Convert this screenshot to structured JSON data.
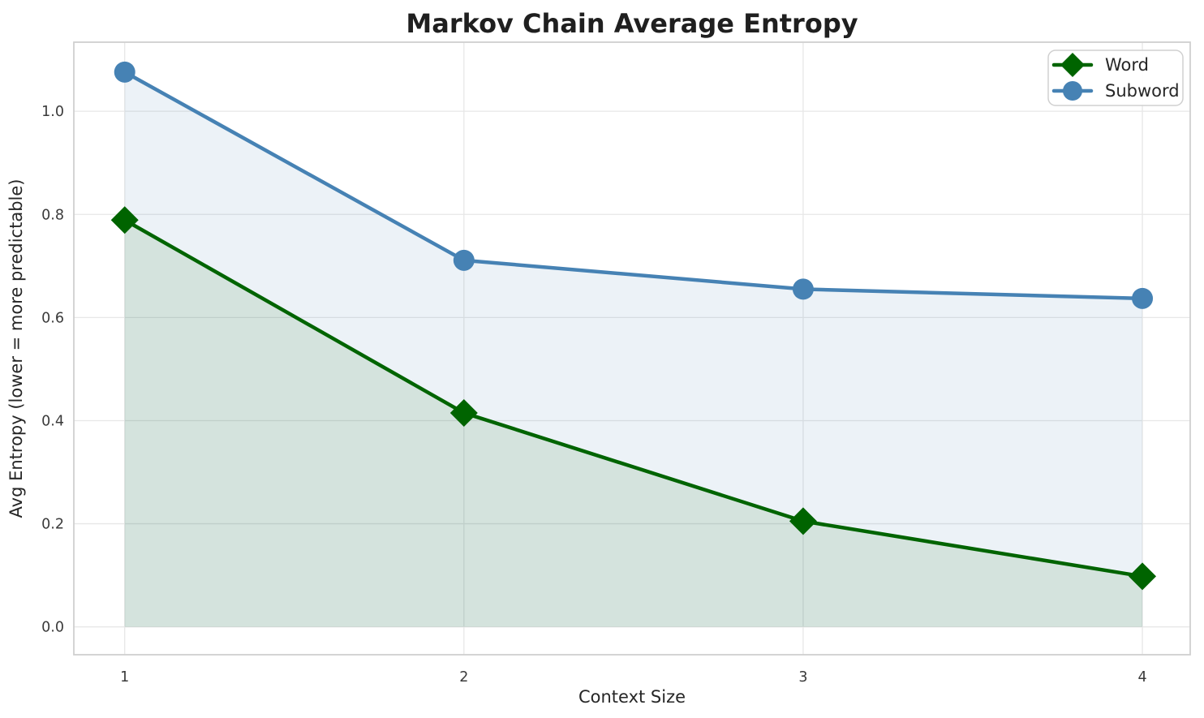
{
  "chart_data": {
    "type": "line",
    "title": "Markov Chain Average Entropy",
    "xlabel": "Context Size",
    "ylabel": "Avg Entropy (lower = more predictable)",
    "x": [
      1,
      2,
      3,
      4
    ],
    "series": [
      {
        "name": "Word",
        "values": [
          0.789,
          0.415,
          0.205,
          0.098
        ],
        "color": "#006400",
        "marker": "diamond",
        "area_fill": true,
        "fill_opacity": 0.1
      },
      {
        "name": "Subword",
        "values": [
          1.076,
          0.711,
          0.655,
          0.637
        ],
        "color": "#4682b4",
        "marker": "circle",
        "area_fill": true,
        "fill_opacity": 0.1
      }
    ],
    "xlim": [
      0.85,
      4.141
    ],
    "ylim": [
      -0.054,
      1.134
    ],
    "xticks": [
      1,
      2,
      3,
      4
    ],
    "xtick_labels": [
      "1",
      "2",
      "3",
      "4"
    ],
    "yticks": [
      0.0,
      0.2,
      0.4,
      0.6,
      0.8,
      1.0
    ],
    "ytick_labels": [
      "0.0",
      "0.2",
      "0.4",
      "0.6",
      "0.8",
      "1.0"
    ],
    "fill_baseline": 0,
    "grid": true,
    "grid_color": "#e7e7e7",
    "spine_color": "#d0d0d0",
    "legend_position": "top-right"
  }
}
